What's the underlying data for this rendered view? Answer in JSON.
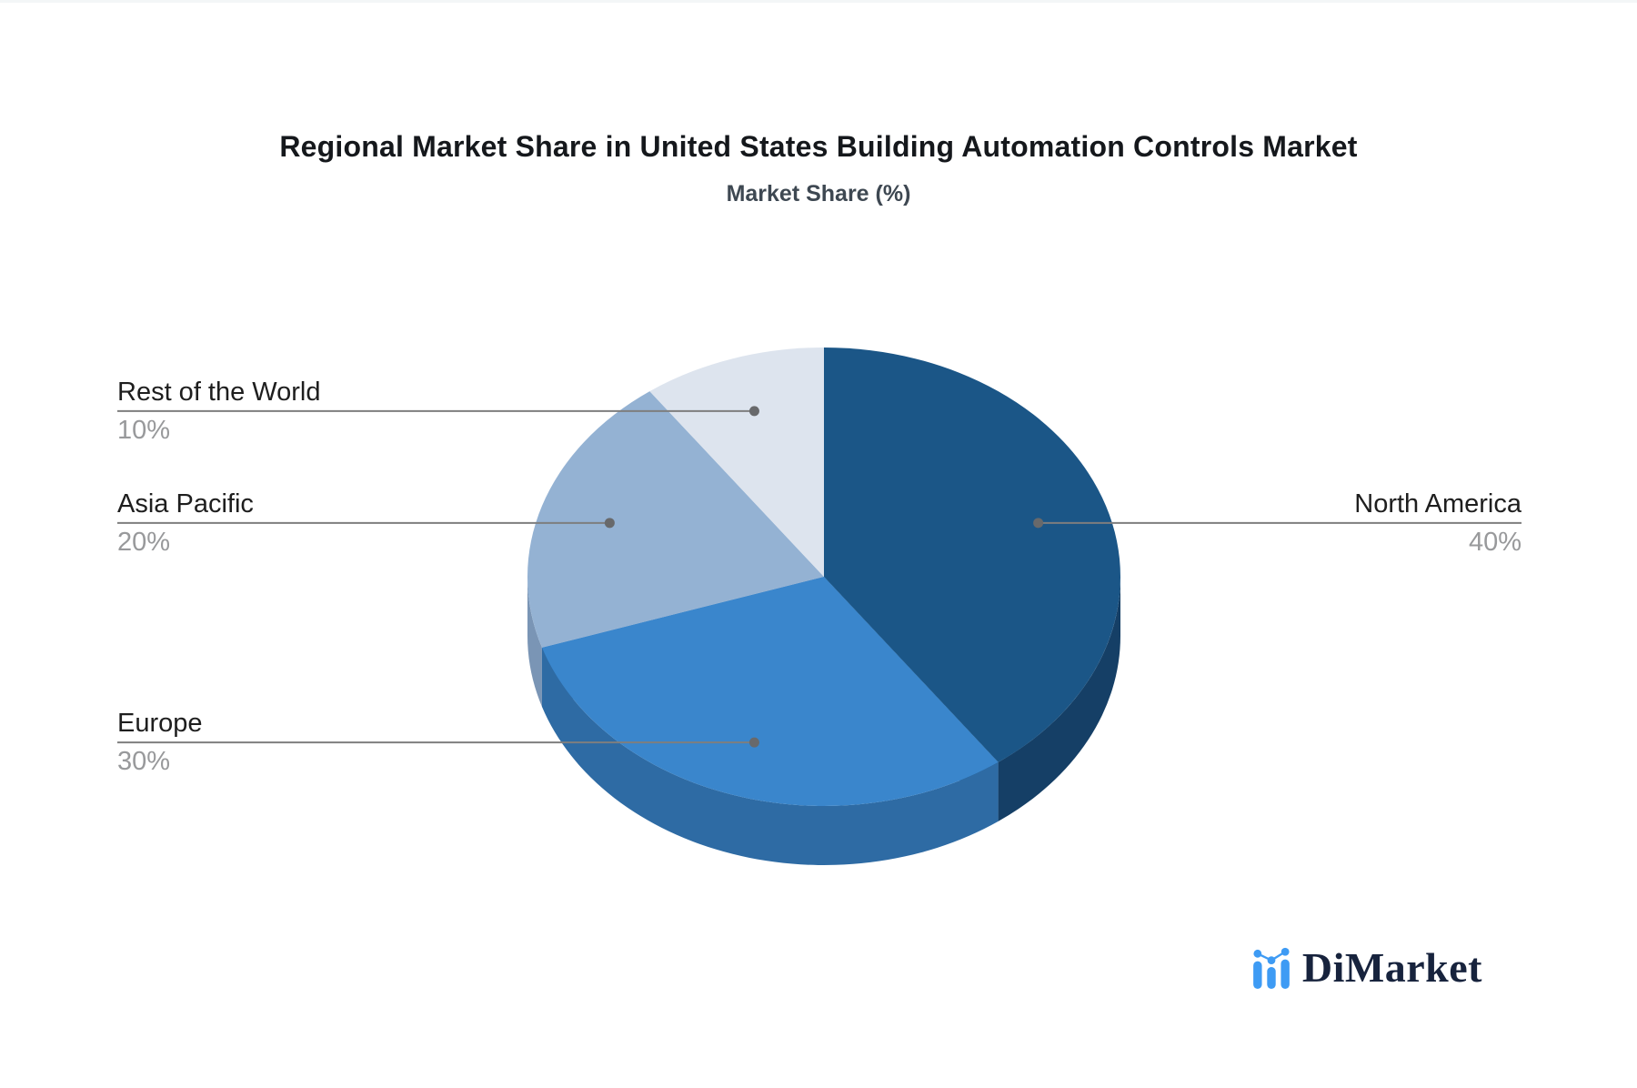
{
  "header": {
    "title": "Regional Market Share in United States Building Automation Controls Market",
    "subtitle": "Market Share (%)"
  },
  "chart_data": {
    "type": "pie",
    "title": "Regional Market Share in United States Building Automation Controls Market",
    "subtitle": "Market Share (%)",
    "unit": "%",
    "effect": "3d",
    "start_angle_deg": -90,
    "direction": "clockwise",
    "legend_position": "none",
    "slices": [
      {
        "name": "North America",
        "value": 40,
        "label": "40%",
        "color": "#1B5687",
        "side_color": "#153F66",
        "label_side": "right"
      },
      {
        "name": "Europe",
        "value": 30,
        "label": "30%",
        "color": "#3A86CC",
        "side_color": "#2E6BA4",
        "label_side": "left"
      },
      {
        "name": "Asia Pacific",
        "value": 20,
        "label": "20%",
        "color": "#94B2D3",
        "side_color": "#7A95B5",
        "label_side": "left"
      },
      {
        "name": "Rest of the World",
        "value": 10,
        "label": "10%",
        "color": "#DDE4EE",
        "side_color": "#BAC5D6",
        "label_side": "left"
      }
    ],
    "leader": {
      "line_color": "#7E7E7E",
      "dot_color": "#68696B"
    },
    "label_colors": {
      "name": "#1E1E1E",
      "percent": "#98999B"
    }
  },
  "branding": {
    "logo_text": "DiMarket",
    "logo_text_color": "#17233D",
    "logo_icon": "bar-line-chart-icon",
    "logo_icon_color": "#3E9BF4"
  }
}
